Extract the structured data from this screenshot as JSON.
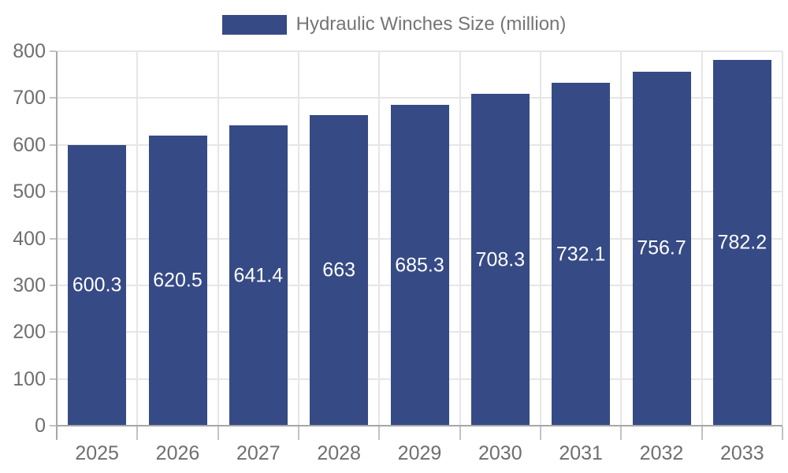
{
  "chart_data": {
    "type": "bar",
    "title": "Hydraulic Winches Size (million)",
    "categories": [
      "2025",
      "2026",
      "2027",
      "2028",
      "2029",
      "2030",
      "2031",
      "2032",
      "2033"
    ],
    "series": [
      {
        "name": "Hydraulic Winches Size (million)",
        "values": [
          600.3,
          620.5,
          641.4,
          663,
          685.3,
          708.3,
          732.1,
          756.7,
          782.2
        ]
      }
    ],
    "xlabel": "",
    "ylabel": "",
    "ylim": [
      0,
      800
    ],
    "ytick_step": 100,
    "grid": true,
    "legend_position": "top",
    "bar_labels_inside": true,
    "colors": {
      "bar": "#364a85",
      "bar_value_label": "#ffffff",
      "axis_text": "#6f6f6f",
      "legend_text": "#757575",
      "gridline": "#e6e6e6",
      "axis_line": "#a6a6a6",
      "tick": "#c2c2c2"
    }
  }
}
